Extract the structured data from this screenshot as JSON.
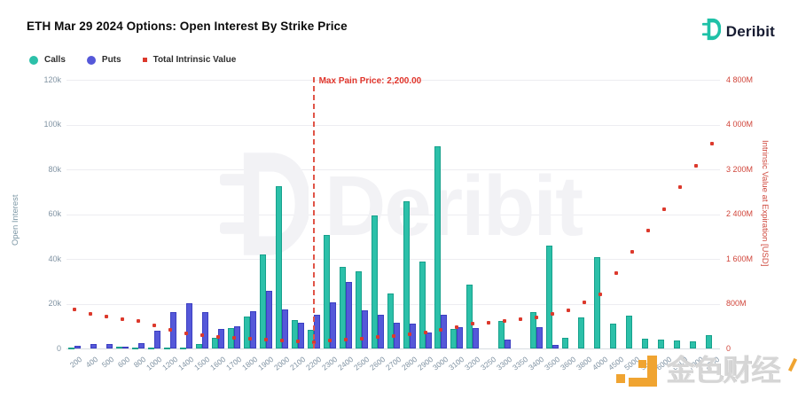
{
  "header": {
    "title": "ETH Mar 29 2024 Options: Open Interest By Strike Price",
    "brand": "Deribit"
  },
  "legend": {
    "items": [
      {
        "label": "Calls",
        "color": "#2cc0a9",
        "shape": "circle"
      },
      {
        "label": "Puts",
        "color": "#5558d9",
        "shape": "circle"
      },
      {
        "label": "Total Intrinsic Value",
        "color": "#dc392c",
        "shape": "square"
      }
    ]
  },
  "watermarks": {
    "center_brand": "Deribit",
    "bottom_right_site": "金色财经"
  },
  "chart_data": {
    "type": "bar",
    "title": "ETH Mar 29 2024 Options: Open Interest By Strike Price",
    "legend_position": "top-left",
    "grid": true,
    "categories": [
      "200",
      "400",
      "500",
      "600",
      "800",
      "1000",
      "1200",
      "1400",
      "1500",
      "1600",
      "1700",
      "1800",
      "1900",
      "2000",
      "2100",
      "2200",
      "2300",
      "2400",
      "2500",
      "2600",
      "2700",
      "2800",
      "2900",
      "3000",
      "3100",
      "3200",
      "3250",
      "3300",
      "3350",
      "3400",
      "3500",
      "3600",
      "3800",
      "4000",
      "4500",
      "5000",
      "5500",
      "6000",
      "6500",
      "7000",
      "7500"
    ],
    "series": [
      {
        "name": "Calls",
        "type": "bar",
        "axis": "left",
        "color": "#2cc0a9",
        "values": [
          500,
          0,
          0,
          800,
          400,
          400,
          300,
          300,
          2000,
          4700,
          9100,
          14100,
          42100,
          72300,
          12700,
          8300,
          50800,
          36600,
          34500,
          59500,
          24700,
          65800,
          39000,
          90400,
          8700,
          28500,
          0,
          12300,
          0,
          16400,
          46000,
          4600,
          13700,
          40800,
          11300,
          14800,
          4500,
          4000,
          3700,
          3300,
          5800
        ]
      },
      {
        "name": "Puts",
        "type": "bar",
        "axis": "left",
        "color": "#5558d9",
        "values": [
          1300,
          2000,
          2100,
          1000,
          2500,
          8100,
          16400,
          20100,
          16100,
          8600,
          10100,
          16600,
          25600,
          17400,
          11700,
          15000,
          20800,
          29700,
          16900,
          15100,
          11400,
          11300,
          7000,
          15000,
          9700,
          9200,
          0,
          3800,
          0,
          9400,
          1500,
          0,
          0,
          0,
          0,
          0,
          0,
          0,
          0,
          0,
          0
        ]
      },
      {
        "name": "Total Intrinsic Value",
        "type": "scatter",
        "axis": "right",
        "unit": "USD millions",
        "color": "#dc392c",
        "values": [
          690,
          620,
          570,
          530,
          485,
          410,
          340,
          270,
          245,
          205,
          190,
          172,
          160,
          148,
          133,
          112,
          143,
          158,
          174,
          205,
          228,
          253,
          290,
          334,
          376,
          440,
          467,
          490,
          526,
          558,
          625,
          687,
          827,
          975,
          1340,
          1725,
          2100,
          2490,
          2890,
          3270,
          3660
        ]
      }
    ],
    "left_axis": {
      "label": "Open Interest",
      "min": 0,
      "max": 120000,
      "ticks": [
        "0",
        "20k",
        "40k",
        "60k",
        "80k",
        "100k",
        "120k"
      ]
    },
    "right_axis": {
      "label": "Intrinsic Value at Expiration [USD]",
      "min": 0,
      "max_millions": 4800,
      "ticks": [
        "0",
        "800M",
        "1 600M",
        "2 400M",
        "3 200M",
        "4 000M",
        "4 800M"
      ]
    },
    "max_pain": {
      "category": "2200",
      "label": "Max Pain Price: 2,200.00"
    }
  }
}
